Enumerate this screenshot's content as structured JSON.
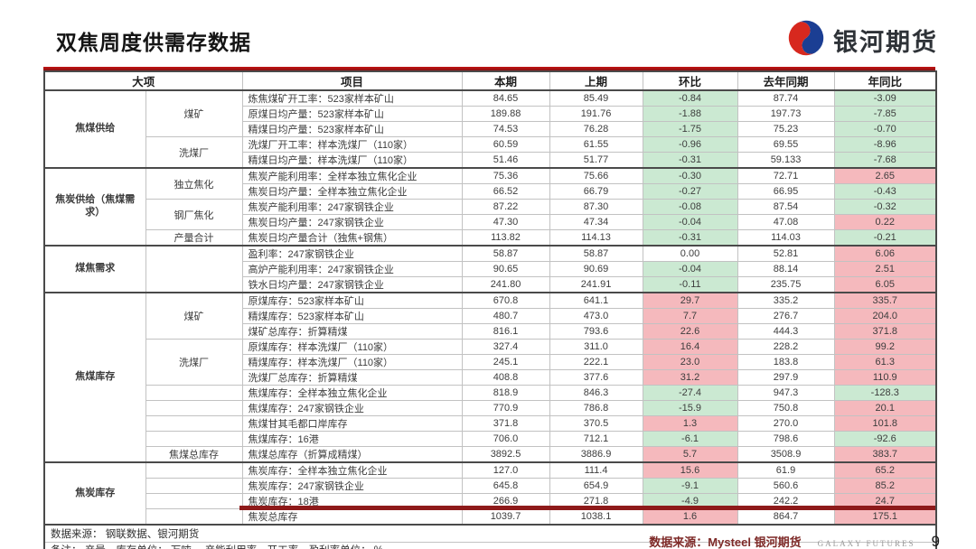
{
  "header": {
    "title": "双焦周度供需存数据",
    "brand_cn": "银河期货"
  },
  "colors": {
    "accent_red_line": "#b01212",
    "maroon_line": "#8e1a1a",
    "green_bg": "#cbe9d2",
    "green_text": "#4f7359",
    "pink_bg": "#f5b9bd",
    "pink_text": "#a3464c",
    "logo_red": "#d7281e",
    "logo_blue": "#1b3e93"
  },
  "table": {
    "columns": [
      "大项",
      "项目",
      "本期",
      "上期",
      "环比",
      "去年同期",
      "年同比"
    ],
    "sections": [
      {
        "category": "焦煤供给",
        "groups": [
          {
            "label": "煤矿",
            "rows": [
              {
                "item": "炼焦煤矿开工率：523家样本矿山",
                "current": "84.65",
                "prev": "85.49",
                "wow": "-0.84",
                "wow_c": "g",
                "last_year": "87.74",
                "yoy": "-3.09",
                "yoy_c": "g"
              },
              {
                "item": "原煤日均产量：523家样本矿山",
                "current": "189.88",
                "prev": "191.76",
                "wow": "-1.88",
                "wow_c": "g",
                "last_year": "197.73",
                "yoy": "-7.85",
                "yoy_c": "g"
              },
              {
                "item": "精煤日均产量：523家样本矿山",
                "current": "74.53",
                "prev": "76.28",
                "wow": "-1.75",
                "wow_c": "g",
                "last_year": "75.23",
                "yoy": "-0.70",
                "yoy_c": "g"
              }
            ]
          },
          {
            "label": "洗煤厂",
            "rows": [
              {
                "item": "洗煤厂开工率：样本洗煤厂（110家）",
                "current": "60.59",
                "prev": "61.55",
                "wow": "-0.96",
                "wow_c": "g",
                "last_year": "69.55",
                "yoy": "-8.96",
                "yoy_c": "g"
              },
              {
                "item": "精煤日均产量：样本洗煤厂（110家）",
                "current": "51.46",
                "prev": "51.77",
                "wow": "-0.31",
                "wow_c": "g",
                "last_year": "59.133",
                "yoy": "-7.68",
                "yoy_c": "g"
              }
            ]
          }
        ]
      },
      {
        "category": "焦炭供给（焦煤需求）",
        "groups": [
          {
            "label": "独立焦化",
            "rows": [
              {
                "item": "焦炭产能利用率：全样本独立焦化企业",
                "current": "75.36",
                "prev": "75.66",
                "wow": "-0.30",
                "wow_c": "g",
                "last_year": "72.71",
                "yoy": "2.65",
                "yoy_c": "p"
              },
              {
                "item": "焦炭日均产量：全样本独立焦化企业",
                "current": "66.52",
                "prev": "66.79",
                "wow": "-0.27",
                "wow_c": "g",
                "last_year": "66.95",
                "yoy": "-0.43",
                "yoy_c": "g"
              }
            ]
          },
          {
            "label": "钢厂焦化",
            "rows": [
              {
                "item": "焦炭产能利用率：247家钢铁企业",
                "current": "87.22",
                "prev": "87.30",
                "wow": "-0.08",
                "wow_c": "g",
                "last_year": "87.54",
                "yoy": "-0.32",
                "yoy_c": "g"
              },
              {
                "item": "焦炭日均产量：247家钢铁企业",
                "current": "47.30",
                "prev": "47.34",
                "wow": "-0.04",
                "wow_c": "g",
                "last_year": "47.08",
                "yoy": "0.22",
                "yoy_c": "p"
              }
            ]
          },
          {
            "label": "产量合计",
            "rows": [
              {
                "item": "焦炭日均产量合计（独焦+钢焦）",
                "current": "113.82",
                "prev": "114.13",
                "wow": "-0.31",
                "wow_c": "g",
                "last_year": "114.03",
                "yoy": "-0.21",
                "yoy_c": "g"
              }
            ]
          }
        ]
      },
      {
        "category": "煤焦需求",
        "groups": [
          {
            "label": "",
            "rows": [
              {
                "item": "盈利率：247家钢铁企业",
                "current": "58.87",
                "prev": "58.87",
                "wow": "0.00",
                "wow_c": "w",
                "last_year": "52.81",
                "yoy": "6.06",
                "yoy_c": "p"
              },
              {
                "item": "高炉产能利用率：247家钢铁企业",
                "current": "90.65",
                "prev": "90.69",
                "wow": "-0.04",
                "wow_c": "g",
                "last_year": "88.14",
                "yoy": "2.51",
                "yoy_c": "p"
              },
              {
                "item": "铁水日均产量：247家钢铁企业",
                "current": "241.80",
                "prev": "241.91",
                "wow": "-0.11",
                "wow_c": "g",
                "last_year": "235.75",
                "yoy": "6.05",
                "yoy_c": "p"
              }
            ]
          }
        ]
      },
      {
        "category": "焦煤库存",
        "groups": [
          {
            "label": "煤矿",
            "rows": [
              {
                "item": "原煤库存：523家样本矿山",
                "current": "670.8",
                "prev": "641.1",
                "wow": "29.7",
                "wow_c": "p",
                "last_year": "335.2",
                "yoy": "335.7",
                "yoy_c": "p"
              },
              {
                "item": "精煤库存：523家样本矿山",
                "current": "480.7",
                "prev": "473.0",
                "wow": "7.7",
                "wow_c": "p",
                "last_year": "276.7",
                "yoy": "204.0",
                "yoy_c": "p"
              },
              {
                "item": "煤矿总库存：折算精煤",
                "current": "816.1",
                "prev": "793.6",
                "wow": "22.6",
                "wow_c": "p",
                "last_year": "444.3",
                "yoy": "371.8",
                "yoy_c": "p"
              }
            ]
          },
          {
            "label": "洗煤厂",
            "rows": [
              {
                "item": "原煤库存：样本洗煤厂（110家）",
                "current": "327.4",
                "prev": "311.0",
                "wow": "16.4",
                "wow_c": "p",
                "last_year": "228.2",
                "yoy": "99.2",
                "yoy_c": "p"
              },
              {
                "item": "精煤库存：样本洗煤厂（110家）",
                "current": "245.1",
                "prev": "222.1",
                "wow": "23.0",
                "wow_c": "p",
                "last_year": "183.8",
                "yoy": "61.3",
                "yoy_c": "p"
              },
              {
                "item": "洗煤厂总库存：折算精煤",
                "current": "408.8",
                "prev": "377.6",
                "wow": "31.2",
                "wow_c": "p",
                "last_year": "297.9",
                "yoy": "110.9",
                "yoy_c": "p"
              }
            ]
          },
          {
            "label": "",
            "rows": [
              {
                "item": "焦煤库存：全样本独立焦化企业",
                "current": "818.9",
                "prev": "846.3",
                "wow": "-27.4",
                "wow_c": "g",
                "last_year": "947.3",
                "yoy": "-128.3",
                "yoy_c": "g"
              }
            ]
          },
          {
            "label": "",
            "rows": [
              {
                "item": "焦煤库存：247家钢铁企业",
                "current": "770.9",
                "prev": "786.8",
                "wow": "-15.9",
                "wow_c": "g",
                "last_year": "750.8",
                "yoy": "20.1",
                "yoy_c": "p"
              }
            ]
          },
          {
            "label": "",
            "rows": [
              {
                "item": "焦煤甘其毛都口岸库存",
                "current": "371.8",
                "prev": "370.5",
                "wow": "1.3",
                "wow_c": "p",
                "last_year": "270.0",
                "yoy": "101.8",
                "yoy_c": "p"
              }
            ]
          },
          {
            "label": "",
            "rows": [
              {
                "item": "焦煤库存：16港",
                "current": "706.0",
                "prev": "712.1",
                "wow": "-6.1",
                "wow_c": "g",
                "last_year": "798.6",
                "yoy": "-92.6",
                "yoy_c": "g"
              }
            ]
          },
          {
            "label": "焦煤总库存",
            "rows": [
              {
                "item": "焦煤总库存（折算成精煤）",
                "current": "3892.5",
                "prev": "3886.9",
                "wow": "5.7",
                "wow_c": "p",
                "last_year": "3508.9",
                "yoy": "383.7",
                "yoy_c": "p"
              }
            ]
          }
        ]
      },
      {
        "category": "焦炭库存",
        "groups": [
          {
            "label": "",
            "rows": [
              {
                "item": "焦炭库存：全样本独立焦化企业",
                "current": "127.0",
                "prev": "111.4",
                "wow": "15.6",
                "wow_c": "p",
                "last_year": "61.9",
                "yoy": "65.2",
                "yoy_c": "p"
              }
            ]
          },
          {
            "label": "",
            "rows": [
              {
                "item": "焦炭库存：247家钢铁企业",
                "current": "645.8",
                "prev": "654.9",
                "wow": "-9.1",
                "wow_c": "g",
                "last_year": "560.6",
                "yoy": "85.2",
                "yoy_c": "p"
              }
            ]
          },
          {
            "label": "",
            "rows": [
              {
                "item": "焦炭库存：18港",
                "current": "266.9",
                "prev": "271.8",
                "wow": "-4.9",
                "wow_c": "g",
                "last_year": "242.2",
                "yoy": "24.7",
                "yoy_c": "p"
              }
            ]
          },
          {
            "label": "",
            "rows": [
              {
                "item": "焦炭总库存",
                "current": "1039.7",
                "prev": "1038.1",
                "wow": "1.6",
                "wow_c": "p",
                "last_year": "864.7",
                "yoy": "175.1",
                "yoy_c": "p"
              }
            ]
          }
        ]
      }
    ]
  },
  "footer": {
    "source_left": "数据来源： 钢联数据、银河期货",
    "note": "备注： 产量、库存单位： 万吨， 产能利用率、开工率、盈利率单位： %",
    "source_right": "数据来源：Mysteel 银河期货",
    "brand_en": "GALAXY FUTURES",
    "page_number": "9"
  }
}
